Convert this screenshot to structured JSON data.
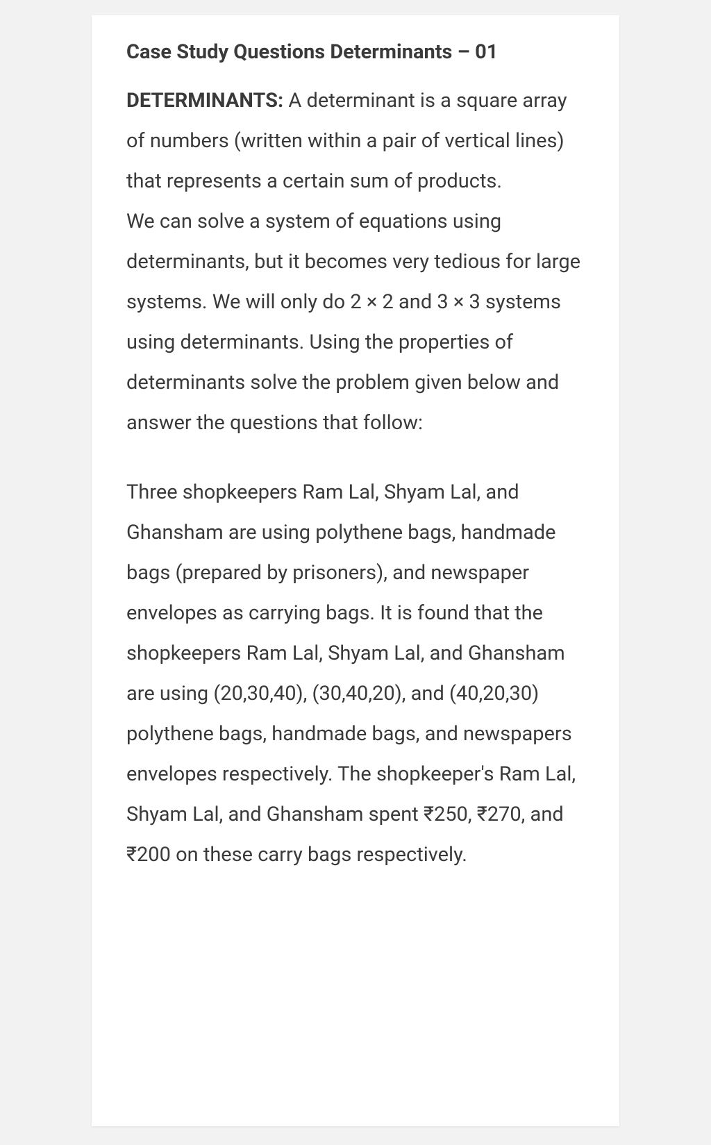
{
  "document": {
    "title": "Case Study Questions Determinants – 01",
    "intro_lead": "DETERMINANTS:",
    "intro_text": " A determinant is a square array of numbers (written within a pair of vertical lines) that represents a certain sum of products.",
    "para2": "We can solve a system of equations using determinants, but it becomes very tedious for large systems. We will only do 2 × 2 and 3 × 3 systems using determinants. Using the properties of determinants solve the problem given below and answer the questions that follow:",
    "para3": "Three shopkeepers Ram Lal, Shyam Lal, and Ghansham are using polythene bags, handmade bags (prepared by prisoners), and newspaper envelopes as carrying bags. It is found that the shopkeepers Ram Lal, Shyam Lal, and Ghansham are using (20,30,40), (30,40,20), and (40,20,30) polythene bags, handmade bags, and newspapers envelopes respectively. The shopkeeper's Ram Lal, Shyam Lal, and Ghansham spent ₹250, ₹270, and ₹200 on these carry bags respectively.",
    "colors": {
      "page_bg": "#000000",
      "outer_bg": "#f2f2f2",
      "card_bg": "#ffffff",
      "text_color": "#3a3a3a"
    },
    "typography": {
      "base_fontsize": 29,
      "title_weight": 700,
      "body_weight": 400,
      "line_height": 2.0
    }
  }
}
